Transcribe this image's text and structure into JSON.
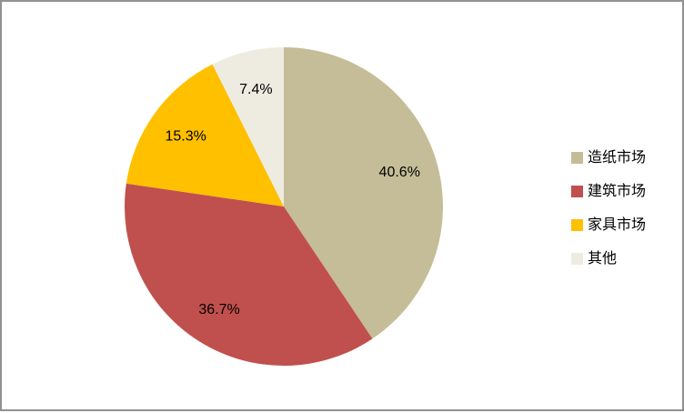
{
  "chart_data": {
    "type": "pie",
    "title": "",
    "segments": [
      {
        "label": "造纸市场",
        "value": 40.6,
        "pct_label": "40.6%",
        "color": "#C4BD97",
        "name": "paper-market"
      },
      {
        "label": "建筑市场",
        "value": 36.7,
        "pct_label": "36.7%",
        "color": "#C0504D",
        "name": "construction-market"
      },
      {
        "label": "家具市场",
        "value": 15.3,
        "pct_label": "15.3%",
        "color": "#FFC000",
        "name": "furniture-market"
      },
      {
        "label": "其他",
        "value": 7.4,
        "pct_label": "7.4%",
        "color": "#EEECE1",
        "name": "other"
      }
    ],
    "legend_position": "right",
    "start_angle": "top",
    "direction": "clockwise",
    "labels_style": "inside-percent",
    "label_text_color": "#000000"
  }
}
